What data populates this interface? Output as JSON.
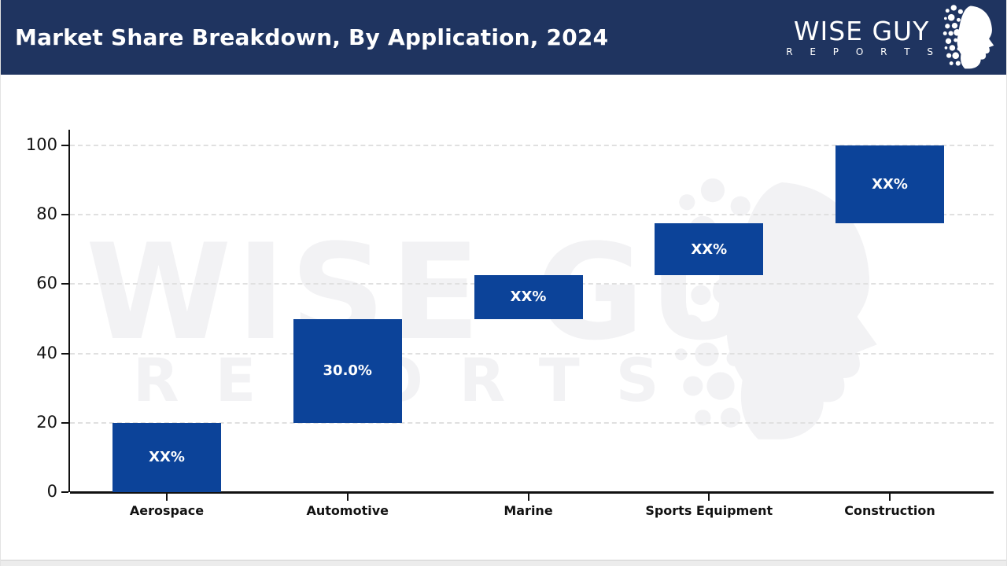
{
  "header": {
    "title": "Market Share Breakdown, By Application, 2024",
    "bg_color": "#1f3460",
    "text_color": "#ffffff",
    "brand": {
      "line1": "WISE GUY",
      "line2": "R E P O R T S"
    }
  },
  "watermark": {
    "line1": "WISE GUY",
    "line2": "REPORTS",
    "color": "#f2f2f4"
  },
  "chart_data": {
    "type": "bar",
    "subtype": "waterfall",
    "title": "Market Share Breakdown, By Application, 2024",
    "categories": [
      "Aerospace",
      "Automotive",
      "Marine",
      "Sports Equipment",
      "Construction"
    ],
    "segments": [
      {
        "category": "Aerospace",
        "start": 0,
        "end": 20,
        "value_label": "XX%"
      },
      {
        "category": "Automotive",
        "start": 20,
        "end": 50,
        "value_label": "30.0%"
      },
      {
        "category": "Marine",
        "start": 50,
        "end": 62.5,
        "value_label": "XX%"
      },
      {
        "category": "Sports Equipment",
        "start": 62.5,
        "end": 77.5,
        "value_label": "XX%"
      },
      {
        "category": "Construction",
        "start": 77.5,
        "end": 100,
        "value_label": "XX%"
      }
    ],
    "ylim": [
      0,
      100
    ],
    "yticks": [
      0,
      20,
      40,
      60,
      80,
      100
    ],
    "xlabel": "",
    "ylabel": "",
    "legend": "none",
    "grid": "horizontal-dashed",
    "bar_color": "#0c4399",
    "bar_label_color": "#ffffff",
    "axis_color": "#111111",
    "grid_color": "#e0e0e0",
    "tick_label_color": "#111111"
  },
  "footer": {
    "strip_color": "#ececec"
  }
}
